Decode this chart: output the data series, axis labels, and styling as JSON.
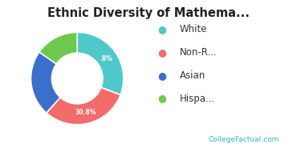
{
  "title": "Ethnic Diversity of Mathema...",
  "slices": [
    {
      "label": "White",
      "pct": 30.8,
      "color": "#4EC8C8"
    },
    {
      "label": "Non-R...",
      "pct": 30.8,
      "color": "#F46B6B"
    },
    {
      "label": "Asian",
      "pct": 23.1,
      "color": "#3A6FCC"
    },
    {
      "label": "Hispa...",
      "pct": 15.3,
      "color": "#6DC94E"
    }
  ],
  "pct_labels": [
    ".8%",
    "30.8%",
    "",
    ""
  ],
  "background_color": "#ffffff",
  "title_fontsize": 10.5,
  "title_fontweight": "bold",
  "legend_fontsize": 8.5,
  "watermark": "CollegeFactual.com",
  "watermark_color": "#29B8C2",
  "watermark_fontsize": 6.5
}
